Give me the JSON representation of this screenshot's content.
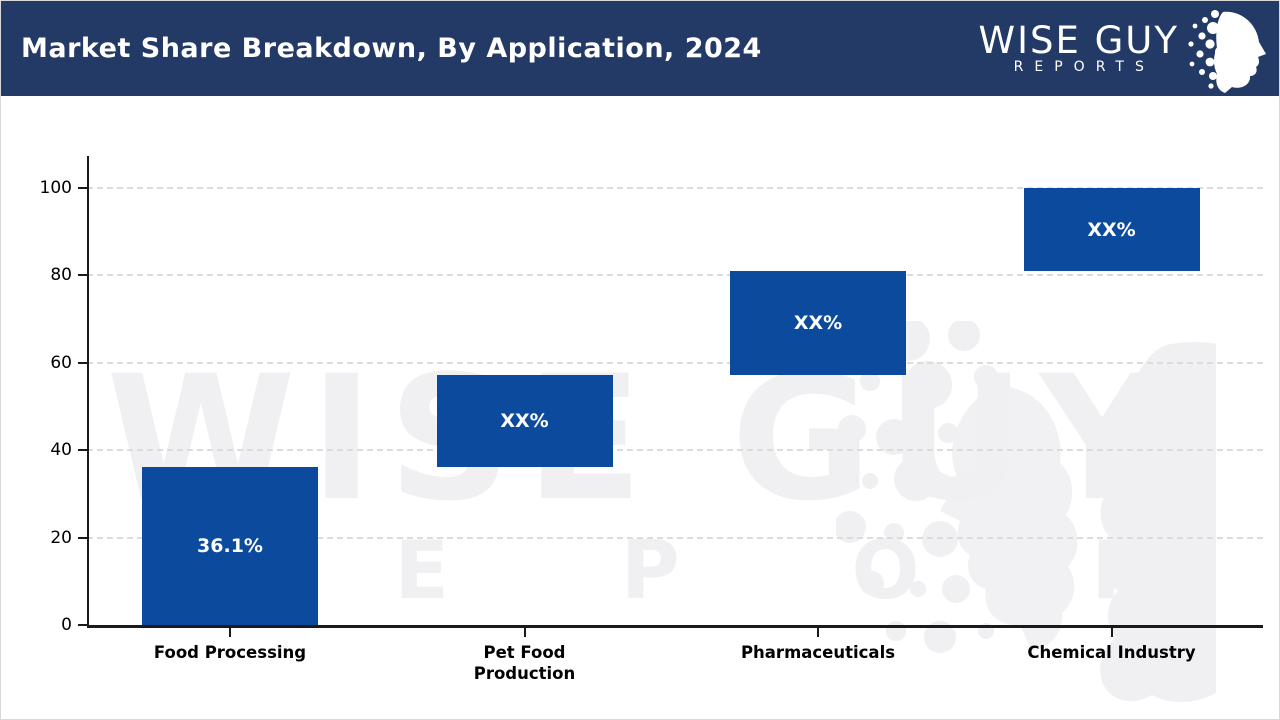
{
  "header": {
    "title": "Market Share Breakdown, By Application, 2024",
    "bg_color": "#233A66",
    "brand": {
      "line1": "WISE GUY",
      "line2": "REPORTS"
    }
  },
  "watermark": {
    "line1": "WISE GUY",
    "line2": "R E P O R T S"
  },
  "colors": {
    "header_bg": "#233A66",
    "bar": "#0C4A9E",
    "bar_label": "#FFFFFF",
    "gridline": "#DCDCDC",
    "axis": "#1A1A1A",
    "watermark": "#F0F0F2"
  },
  "chart_data": {
    "type": "bar",
    "subtype": "floating-waterfall",
    "title": "Market Share Breakdown, By Application, 2024",
    "categories": [
      [
        "Food Processing"
      ],
      [
        "Pet Food",
        "Production"
      ],
      [
        "Pharmaceuticals"
      ],
      [
        "Chemical Industry"
      ]
    ],
    "series": [
      {
        "name": "Market Share",
        "segments": [
          {
            "category": "Food Processing",
            "start": 0,
            "end": 36.1,
            "label": "36.1%"
          },
          {
            "category": "Pet Food Production",
            "start": 36.1,
            "end": 57.1,
            "label": "XX%"
          },
          {
            "category": "Pharmaceuticals",
            "start": 57.1,
            "end": 81.0,
            "label": "XX%"
          },
          {
            "category": "Chemical Industry",
            "start": 81.0,
            "end": 100.0,
            "label": "XX%"
          }
        ]
      }
    ],
    "ylim": [
      0,
      100
    ],
    "yticks": [
      0,
      20,
      40,
      60,
      80,
      100
    ],
    "xlabel": "",
    "ylabel": "",
    "grid": true,
    "legend": false
  }
}
